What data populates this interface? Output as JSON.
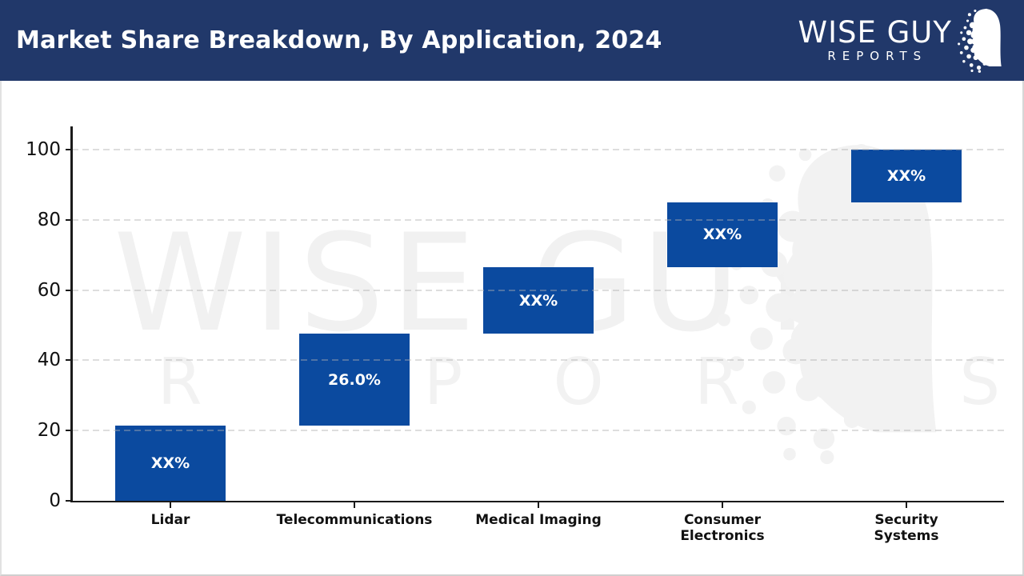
{
  "header": {
    "title": "Market Share Breakdown, By Application, 2024",
    "logo_line1": "WISE GUY",
    "logo_line2": "REPORTS"
  },
  "watermark": {
    "line1": "WISE GUY",
    "line2": "R E P O R T S"
  },
  "colors": {
    "header_bg": "#21386A",
    "bar": "#0B4A9F",
    "bar_label": "#FFFFFF",
    "axis": "#1A1A1A",
    "grid": "#B4B4B4"
  },
  "chart_data": {
    "type": "bar",
    "variant": "waterfall",
    "title": "Market Share Breakdown, By Application, 2024",
    "xlabel": "",
    "ylabel": "",
    "categories": [
      "Lidar",
      "Telecommunications",
      "Medical Imaging",
      "Consumer Electronics",
      "Security Systems"
    ],
    "xtick_labels": [
      "Lidar",
      "Telecommunications",
      "Medical Imaging",
      "Consumer\nElectronics",
      "Security Systems"
    ],
    "segments": [
      {
        "category": "Lidar",
        "start": 0,
        "end": 21.5,
        "value_label": "XX%"
      },
      {
        "category": "Telecommunications",
        "start": 21.5,
        "end": 47.5,
        "value_label": "26.0%"
      },
      {
        "category": "Medical Imaging",
        "start": 47.5,
        "end": 66.5,
        "value_label": "XX%"
      },
      {
        "category": "Consumer Electronics",
        "start": 66.5,
        "end": 85,
        "value_label": "XX%"
      },
      {
        "category": "Security Systems",
        "start": 85,
        "end": 100,
        "value_label": "XX%"
      }
    ],
    "y_ticks": [
      0,
      20,
      40,
      60,
      80,
      100
    ],
    "ylim": [
      0,
      106.5
    ],
    "grid": {
      "axis": "y",
      "style": "dashed"
    },
    "legend": "none"
  }
}
